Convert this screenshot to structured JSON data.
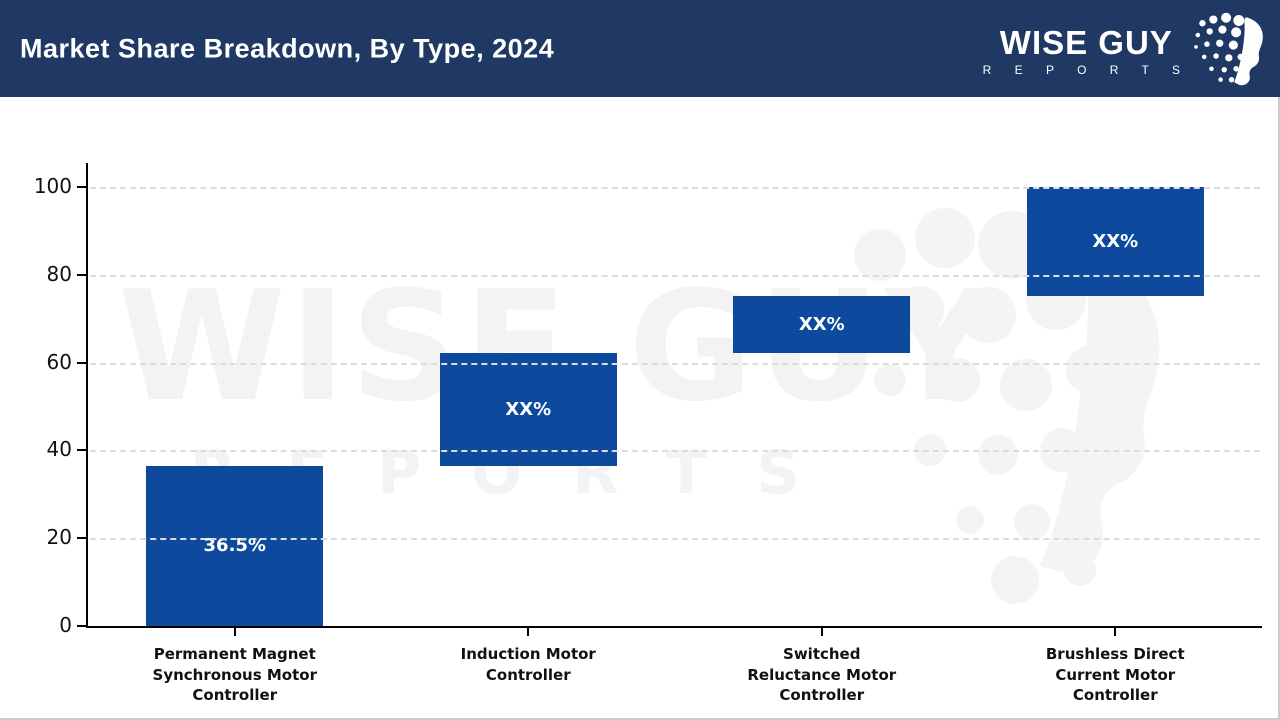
{
  "header": {
    "title": "Market Share Breakdown, By Type, 2024",
    "bg_color": "#1f3864",
    "logo": {
      "line1": "WISE GUY",
      "line2": "R E P O R T S"
    }
  },
  "watermark": {
    "line1": "WISE GUY",
    "line2": "REPORTS"
  },
  "chart_data": {
    "type": "bar",
    "subtype": "floating-segment-waterfall",
    "title": "Market Share Breakdown, By Type, 2024",
    "categories": [
      "Permanent Magnet\nSynchronous Motor\nController",
      "Induction Motor\nController",
      "Switched\nReluctance Motor\nController",
      "Brushless Direct\nCurrent Motor\nController"
    ],
    "bars": [
      {
        "start": 0,
        "end": 36.5,
        "label": "36.5%"
      },
      {
        "start": 36.5,
        "end": 62.2,
        "label": "XX%"
      },
      {
        "start": 62.2,
        "end": 75.2,
        "label": "XX%"
      },
      {
        "start": 75.2,
        "end": 100,
        "label": "XX%"
      }
    ],
    "yticks": [
      0,
      20,
      40,
      60,
      80,
      100
    ],
    "ylim": [
      0,
      105.5
    ],
    "xlabel": "",
    "ylabel": "",
    "grid": "dashed-horizontal",
    "legend": "none",
    "bar_color": "#0d4a9e",
    "bar_label_color": "#ffffff",
    "grid_color": "#dcdcdc",
    "axis_color": "#000000"
  }
}
